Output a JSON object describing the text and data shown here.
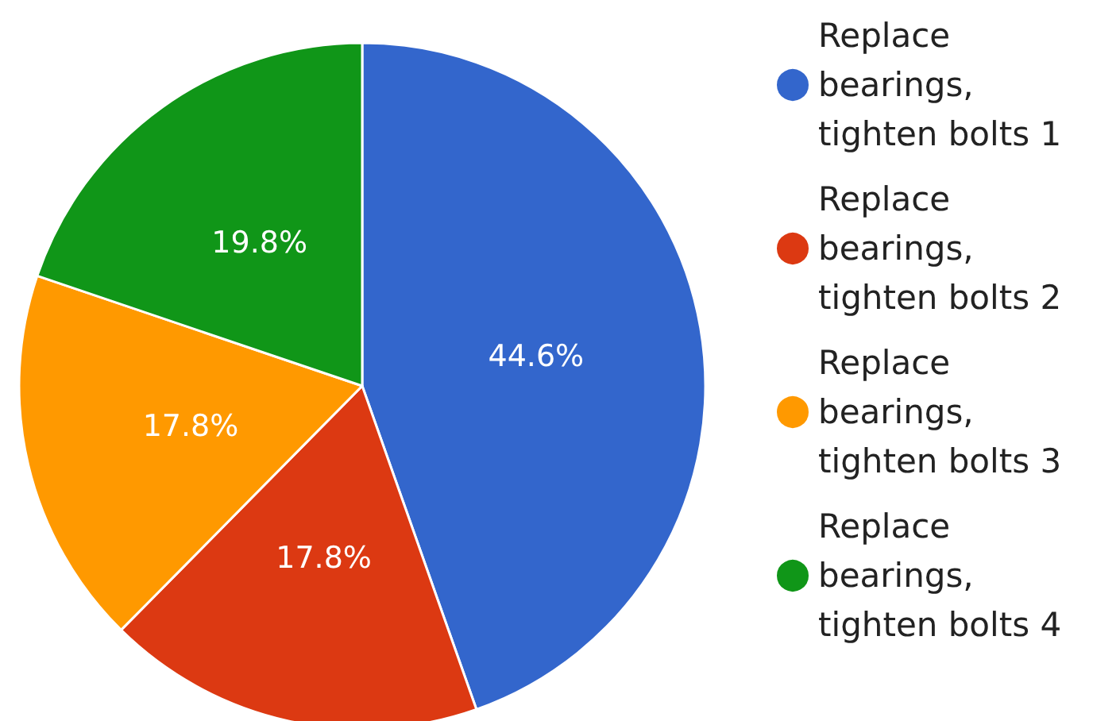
{
  "chart_data": {
    "type": "pie",
    "categories": [
      "Replace bearings, tighten bolts 1",
      "Replace bearings, tighten bolts 2",
      "Replace bearings, tighten bolts 3",
      "Replace bearings, tighten bolts 4"
    ],
    "values": [
      44.6,
      17.8,
      17.8,
      19.8
    ],
    "colors": [
      "#3366cc",
      "#dc3912",
      "#ff9900",
      "#109618"
    ],
    "value_labels": [
      "44.6%",
      "17.8%",
      "17.8%",
      "19.8%"
    ],
    "legend": "right"
  }
}
